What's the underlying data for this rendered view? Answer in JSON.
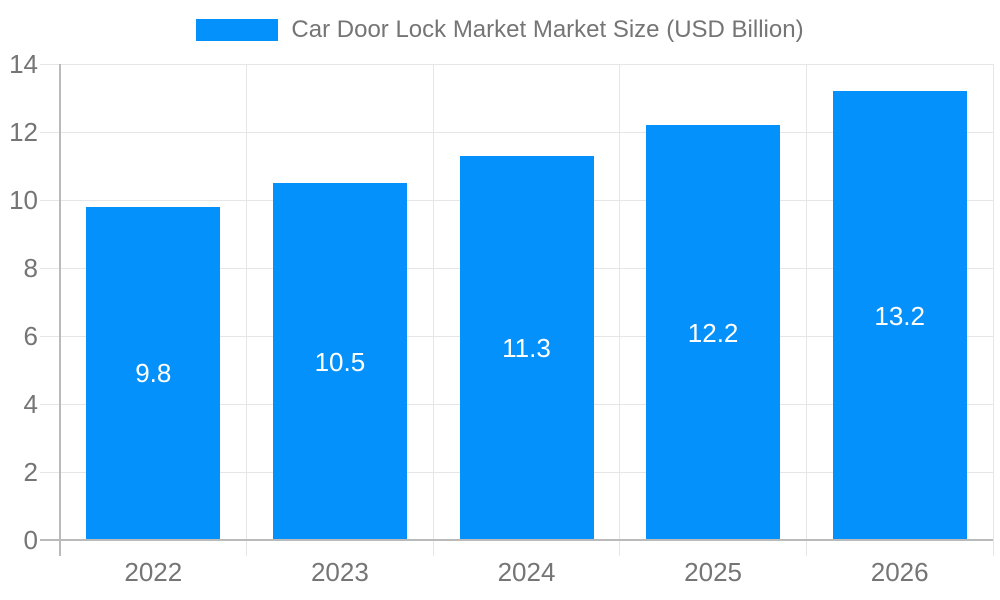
{
  "legend": {
    "label": "Car Door Lock Market Market Size (USD Billion)"
  },
  "chart_data": {
    "type": "bar",
    "title": "Car Door Lock Market Market Size (USD Billion)",
    "categories": [
      "2022",
      "2023",
      "2024",
      "2025",
      "2026"
    ],
    "values": [
      9.8,
      10.5,
      11.3,
      12.2,
      13.2
    ],
    "value_labels": [
      "9.8",
      "10.5",
      "11.3",
      "12.2",
      "13.2"
    ],
    "xlabel": "",
    "ylabel": "",
    "ylim": [
      0,
      14
    ],
    "yticks": [
      0,
      2,
      4,
      6,
      8,
      10,
      12,
      14
    ],
    "grid": true,
    "legend_position": "top",
    "series_name": "Car Door Lock Market Market Size (USD Billion)"
  },
  "colors": {
    "bar": "#0591fb",
    "text": "#757575",
    "grid": "#e6e6e6",
    "axis": "#bababa",
    "bar_label": "#ffffff",
    "background": "#ffffff"
  }
}
